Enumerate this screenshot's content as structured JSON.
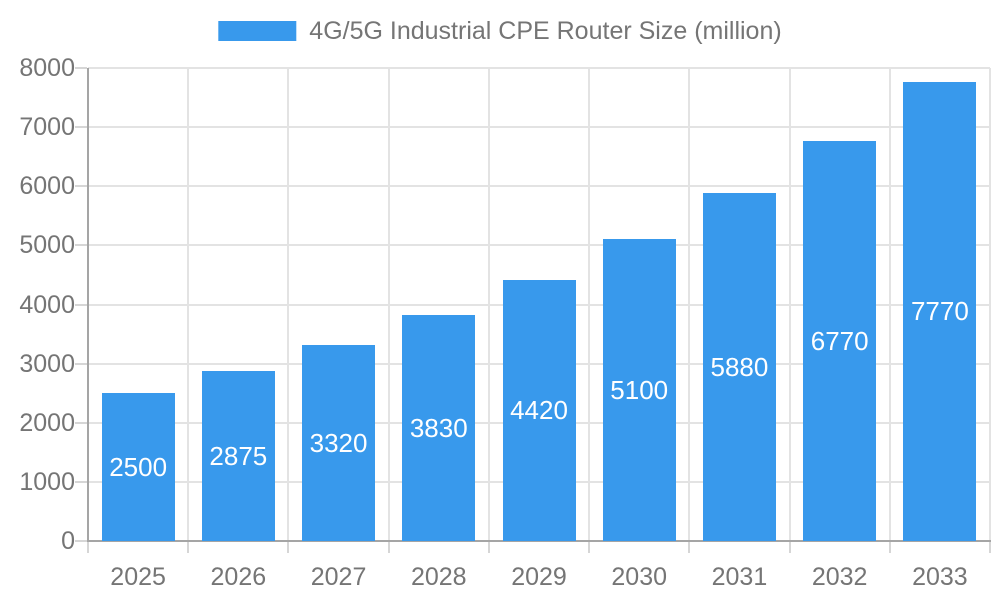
{
  "chart_data": {
    "type": "bar",
    "title": "4G/5G Industrial CPE Router Size (million)",
    "series_name": "4G/5G Industrial CPE Router Size (million)",
    "categories": [
      "2025",
      "2026",
      "2027",
      "2028",
      "2029",
      "2030",
      "2031",
      "2032",
      "2033"
    ],
    "values": [
      2500,
      2875,
      3320,
      3830,
      4420,
      5100,
      5880,
      6770,
      7770
    ],
    "xlabel": "",
    "ylabel": "",
    "ylim": [
      0,
      8000
    ],
    "y_tick_step": 1000,
    "y_tick_labels": [
      "0",
      "1000",
      "2000",
      "3000",
      "4000",
      "5000",
      "6000",
      "7000",
      "8000"
    ],
    "grid": true,
    "legend_position": "top",
    "value_labels": "inside-middle"
  },
  "colors": {
    "bar": "#3899EC",
    "value_label": "#ffffff",
    "axis_text": "#757575",
    "axis_line": "#a5a5a5",
    "tick": "#d6d6d6",
    "gridline": "#e3e3e3",
    "background": "#ffffff"
  }
}
